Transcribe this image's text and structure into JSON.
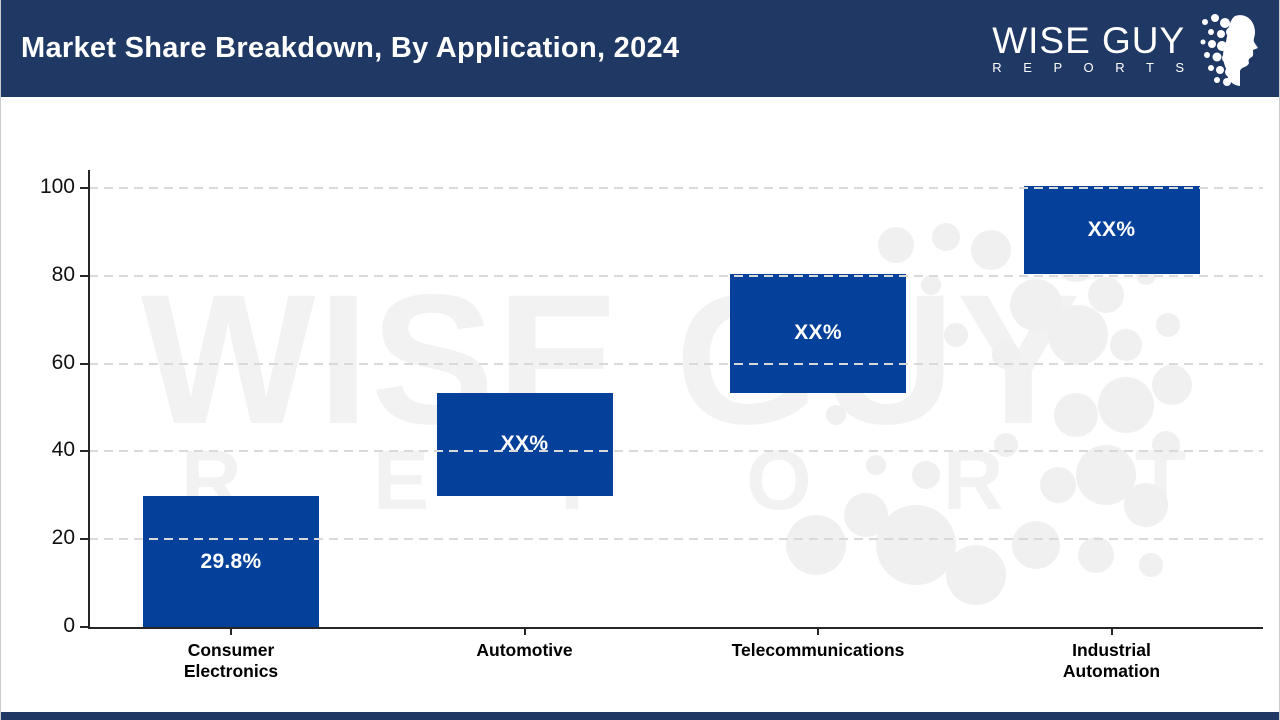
{
  "header": {
    "title": "Market Share Breakdown, By Application, 2024",
    "logo": {
      "line1": "WISE GUY",
      "line2": "R E P O R T S"
    }
  },
  "footer": {},
  "watermark": {
    "line1": "WISE GUY",
    "line2": "R E P O R T S",
    "face_motif": "dotted-face-profile"
  },
  "colors": {
    "header_bg": "#1f3864",
    "footer_bg": "#1f3864",
    "bar_fill": "#05409a",
    "gridline": "#d9d9d9",
    "axis": "#262626",
    "bar_label_text": "#ffffff",
    "watermark": "#f2f2f2"
  },
  "chart_data": {
    "type": "bar",
    "variant": "floating-waterfall",
    "title": "Market Share Breakdown, By Application, 2024",
    "xlabel": "",
    "ylabel": "",
    "legend": "none",
    "grid": "horizontal-dashed",
    "yticks": [
      0,
      20,
      40,
      60,
      80,
      100
    ],
    "ylim": [
      0,
      104
    ],
    "categories": [
      "Consumer Electronics",
      "Automotive",
      "Telecommunications",
      "Industrial Automation"
    ],
    "segments": [
      {
        "category": "Consumer Electronics",
        "category_lines": [
          "Consumer",
          "Electronics"
        ],
        "start": 0,
        "end": 29.8,
        "value": 29.8,
        "label": "29.8%"
      },
      {
        "category": "Automotive",
        "category_lines": [
          "Automotive"
        ],
        "start": 29.8,
        "end": 53.4,
        "value": 23.6,
        "label": "XX%"
      },
      {
        "category": "Telecommunications",
        "category_lines": [
          "Telecommunications"
        ],
        "start": 53.4,
        "end": 80.4,
        "value": 27.0,
        "label": "XX%"
      },
      {
        "category": "Industrial Automation",
        "category_lines": [
          "Industrial",
          "Automation"
        ],
        "start": 80.4,
        "end": 100.4,
        "value": 20.0,
        "label": "XX%"
      }
    ]
  }
}
